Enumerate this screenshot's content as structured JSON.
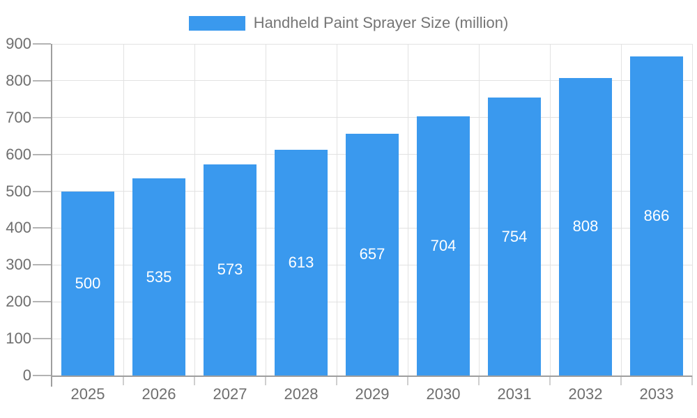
{
  "chart_data": {
    "type": "bar",
    "title": "Handheld Paint Sprayer Size (million)",
    "legend": [
      "Handheld Paint Sprayer Size (million)"
    ],
    "legend_position": "top",
    "categories": [
      "2025",
      "2026",
      "2027",
      "2028",
      "2029",
      "2030",
      "2031",
      "2032",
      "2033"
    ],
    "series": [
      {
        "name": "Handheld Paint Sprayer Size (million)",
        "values": [
          500,
          535,
          573,
          613,
          657,
          704,
          754,
          808,
          866
        ]
      }
    ],
    "xlabel": "",
    "ylabel": "",
    "ylim": [
      0,
      900
    ],
    "yticks": [
      0,
      100,
      200,
      300,
      400,
      500,
      600,
      700,
      800,
      900
    ],
    "grid": true,
    "bar_color": "#3A99EE",
    "bar_label_color": "#FFFFFF",
    "axis_label_color": "#6E6E6E",
    "title_color": "#757575",
    "gridline_color": "#E2E2E2",
    "axis_line_color": "#9E9E9E"
  }
}
